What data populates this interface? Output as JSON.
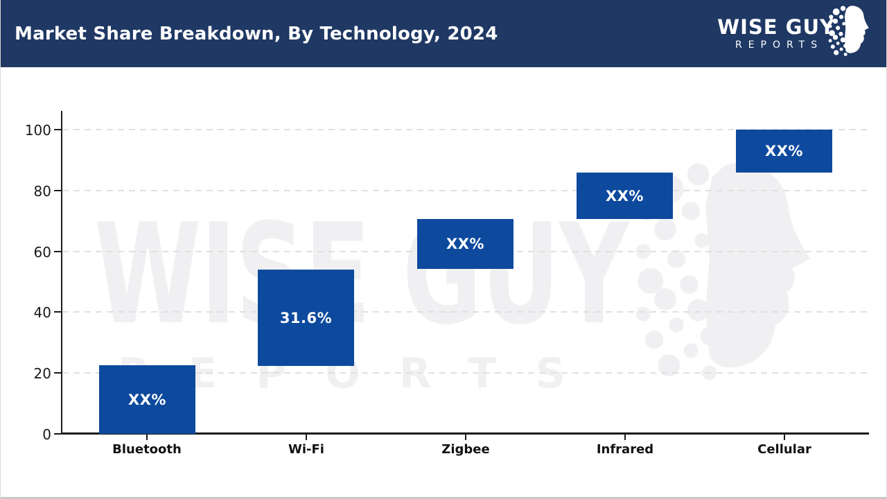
{
  "header": {
    "title": "Market Share Breakdown, By Technology, 2024",
    "logo": {
      "name_line": "WISE GUY",
      "sub_line": "REPORTS"
    }
  },
  "watermark": {
    "name_line": "WISE GUY",
    "sub_line": "REPORTS"
  },
  "chart_data": {
    "type": "bar",
    "subtype": "waterfall",
    "title": "Market Share Breakdown, By Technology, 2024",
    "categories": [
      "Bluetooth",
      "Wi-Fi",
      "Zigbee",
      "Infrared",
      "Cellular"
    ],
    "segments": [
      {
        "category": "Bluetooth",
        "start": 0,
        "end": 22.5,
        "value_label": "XX%"
      },
      {
        "category": "Wi-Fi",
        "start": 22.5,
        "end": 54.1,
        "value_label": "31.6%"
      },
      {
        "category": "Zigbee",
        "start": 54.1,
        "end": 70.6,
        "value_label": "XX%"
      },
      {
        "category": "Infrared",
        "start": 70.6,
        "end": 85.9,
        "value_label": "XX%"
      },
      {
        "category": "Cellular",
        "start": 85.9,
        "end": 100,
        "value_label": "XX%"
      }
    ],
    "yticks": [
      0,
      20,
      40,
      60,
      80,
      100
    ],
    "ylim": [
      0,
      100
    ],
    "xlabel": "",
    "ylabel": "",
    "grid": "horizontal-dashed",
    "legend": "none",
    "bar_color": "#0d4a9e",
    "value_label_color": "#ffffff"
  },
  "colors": {
    "header_bg": "#1f3864",
    "bar": "#0d4a9e",
    "grid": "#e0e0e0",
    "axis": "#1a1a1a",
    "watermark": "#f0f0f2",
    "page_bg": "#ffffff"
  }
}
